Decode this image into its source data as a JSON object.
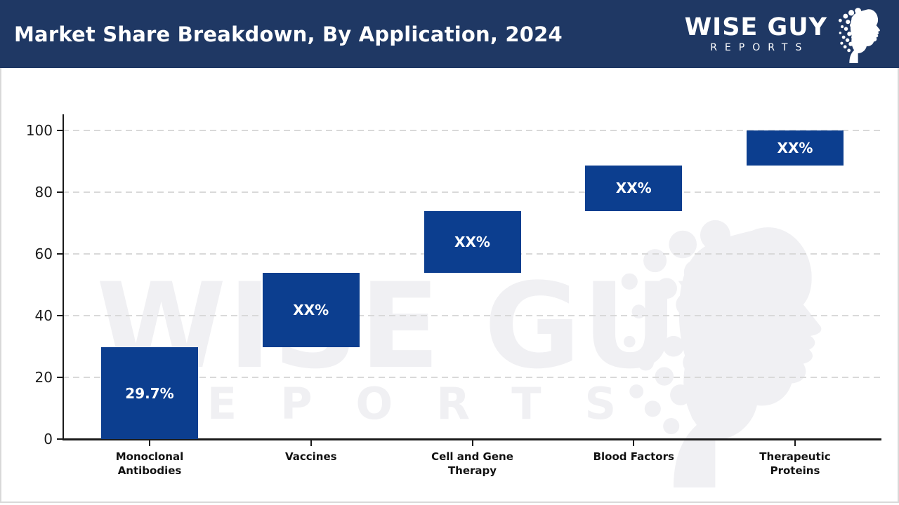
{
  "header": {
    "title": "Market Share Breakdown, By Application, 2024",
    "logo": {
      "line1": "WISE GUY",
      "line2": "REPORTS"
    }
  },
  "watermark": {
    "line1": "WISE GUY",
    "line2": "REPORTS"
  },
  "chart_data": {
    "type": "bar",
    "subtype": "waterfall",
    "title": "Market Share Breakdown, By Application, 2024",
    "xlabel": "",
    "ylabel": "",
    "ylim": [
      0,
      100
    ],
    "yticks": [
      0,
      20,
      40,
      60,
      80,
      100
    ],
    "grid": "dashed-horizontal",
    "legend": "none",
    "categories": [
      "Monoclonal Antibodies",
      "Vaccines",
      "Cell and Gene Therapy",
      "Blood Factors",
      "Therapeutic Proteins"
    ],
    "categories_lines": [
      [
        "Monoclonal",
        "Antibodies"
      ],
      [
        "Vaccines"
      ],
      [
        "Cell and Gene",
        "Therapy"
      ],
      [
        "Blood Factors"
      ],
      [
        "Therapeutic",
        "Proteins"
      ]
    ],
    "segments": [
      {
        "category": "Monoclonal Antibodies",
        "start": 0,
        "end": 29.7,
        "value_label": "29.7%"
      },
      {
        "category": "Vaccines",
        "start": 29.7,
        "end": 53.8,
        "value_label": "XX%"
      },
      {
        "category": "Cell and Gene Therapy",
        "start": 53.8,
        "end": 73.9,
        "value_label": "XX%"
      },
      {
        "category": "Blood Factors",
        "start": 73.9,
        "end": 88.6,
        "value_label": "XX%"
      },
      {
        "category": "Therapeutic Proteins",
        "start": 88.6,
        "end": 100,
        "value_label": "XX%"
      }
    ]
  },
  "colors": {
    "header_bg": "#1f3864",
    "header_text": "#ffffff",
    "bar": "#0c3e8f",
    "bar_label": "#ffffff",
    "axis": "#1a1a1a",
    "grid": "#d9d9d9",
    "watermark": "#f0f0f3",
    "panel_border": "#d9d9d9"
  }
}
